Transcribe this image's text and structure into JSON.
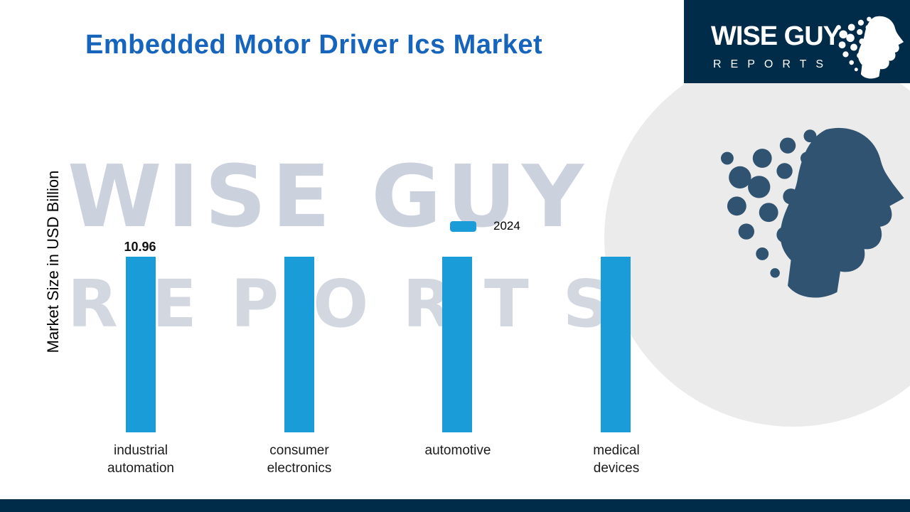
{
  "chart_data": {
    "type": "bar",
    "title": "Embedded Motor Driver Ics Market",
    "ylabel": "Market Size in USD Billion",
    "xlabel": "",
    "categories": [
      "industrial automation",
      "consumer electronics",
      "automotive",
      "medical devices"
    ],
    "category_lines": [
      [
        "industrial",
        "automation"
      ],
      [
        "consumer",
        "electronics"
      ],
      [
        "automotive",
        ""
      ],
      [
        "medical",
        "devices"
      ]
    ],
    "values": [
      10.96,
      10.96,
      10.96,
      10.96
    ],
    "value_labels": [
      "10.96",
      "",
      "",
      ""
    ],
    "ylim": [
      0,
      12
    ],
    "grid": false,
    "bar_color": "#1A9CD8",
    "legend_position": "top-center",
    "legend": [
      {
        "label": "2024",
        "color": "#1A9CD8"
      }
    ]
  },
  "logo": {
    "line1": "WISE GUY",
    "line2": "REPORTS"
  },
  "watermark": {
    "line1": "WISE GUY",
    "line2": "REPORTS"
  },
  "colors": {
    "title_blue": "#1664BB",
    "navy": "#002B49",
    "bar_blue": "#1A9CD8",
    "watermark_gray": "#CCD2DD",
    "circle_gray": "#EBEBEB"
  }
}
